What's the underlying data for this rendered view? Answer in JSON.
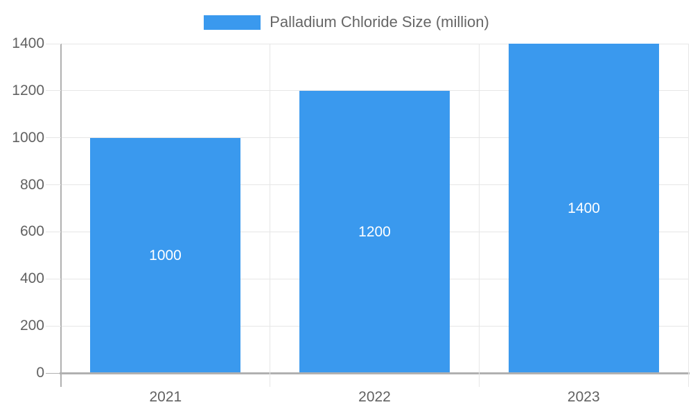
{
  "legend": {
    "series_label": "Palladium Chloride Size (million)"
  },
  "colors": {
    "bar": "#3a99ee",
    "grid": "#e6e6e6",
    "axis": "#b0b0b0",
    "tick_label": "#616161",
    "legend_label": "#666666",
    "bar_value_label": "#ffffff",
    "background": "#ffffff"
  },
  "chart_data": {
    "type": "bar",
    "title": "Palladium Chloride Size (million)",
    "series": [
      {
        "name": "Palladium Chloride Size (million)",
        "values": [
          1000,
          1200,
          1400
        ]
      }
    ],
    "categories": [
      "2021",
      "2022",
      "2023"
    ],
    "bar_value_labels": [
      "1000",
      "1200",
      "1400"
    ],
    "ytick_labels": [
      "0",
      "200",
      "400",
      "600",
      "800",
      "1000",
      "1200",
      "1400"
    ],
    "yticks": [
      0,
      200,
      400,
      600,
      800,
      1000,
      1200,
      1400
    ],
    "ylim": [
      0,
      1400
    ],
    "xlabel": "",
    "ylabel": "",
    "grid": true,
    "legend_position": "top-center"
  }
}
